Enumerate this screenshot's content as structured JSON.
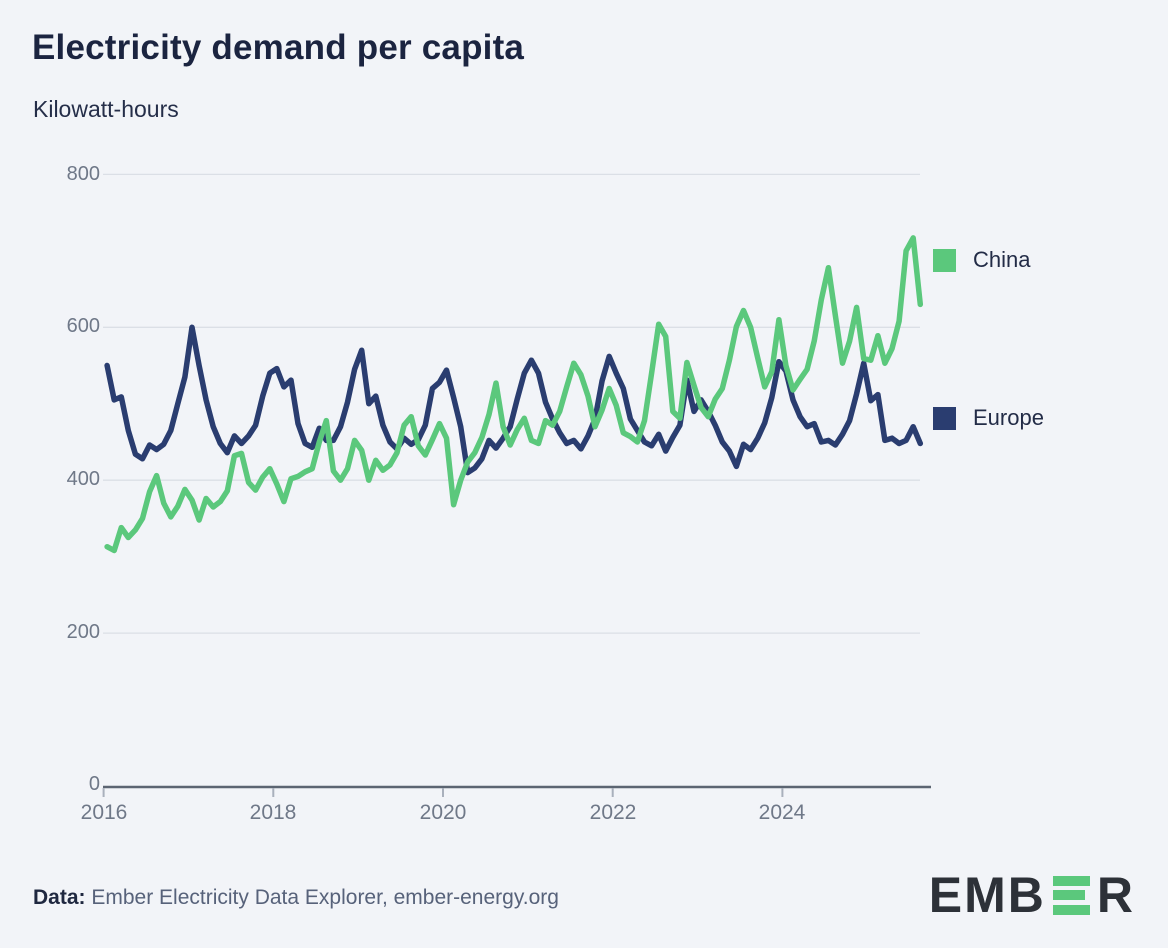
{
  "header": {
    "title": "Electricity demand per capita",
    "subtitle": "Kilowatt-hours"
  },
  "chart_data": {
    "type": "line",
    "title": "Electricity demand per capita",
    "ylabel": "Kilowatt-hours",
    "frequency": "monthly",
    "x_range": [
      "2016-01",
      "2025-08"
    ],
    "x_tick_labels": [
      "2016",
      "2018",
      "2020",
      "2022",
      "2024"
    ],
    "y_ticks": [
      0,
      200,
      400,
      600,
      800
    ],
    "y_tick_labels": [
      "800",
      "600",
      "400",
      "200",
      "0"
    ],
    "ylim": [
      0,
      800
    ],
    "grid": "horizontal",
    "legend_position": "right",
    "colors": {
      "background": "#f2f4f8",
      "gridline": "#dbdfe6",
      "axis": "#5c6572",
      "tick": "#a9b0bc",
      "china": "#5bc87c",
      "europe": "#2a3d70"
    },
    "series": [
      {
        "name": "China",
        "color": "#5bc87c",
        "values": [
          313,
          308,
          338,
          325,
          335,
          350,
          385,
          406,
          370,
          352,
          366,
          388,
          374,
          348,
          376,
          365,
          372,
          386,
          432,
          435,
          397,
          387,
          404,
          415,
          395,
          372,
          402,
          405,
          411,
          415,
          450,
          478,
          412,
          400,
          415,
          452,
          439,
          400,
          426,
          413,
          420,
          436,
          472,
          483,
          445,
          433,
          453,
          474,
          455,
          368,
          400,
          424,
          436,
          456,
          486,
          527,
          470,
          446,
          466,
          481,
          452,
          448,
          478,
          472,
          490,
          522,
          553,
          538,
          510,
          470,
          492,
          520,
          498,
          462,
          457,
          450,
          478,
          540,
          604,
          588,
          490,
          481,
          554,
          524,
          495,
          483,
          506,
          520,
          557,
          601,
          622,
          600,
          560,
          522,
          542,
          610,
          550,
          518,
          532,
          545,
          582,
          636,
          678,
          615,
          553,
          582,
          626,
          559,
          557,
          589,
          553,
          572,
          608,
          700,
          717,
          630
        ]
      },
      {
        "name": "Europe",
        "color": "#2a3d70",
        "values": [
          550,
          505,
          509,
          465,
          434,
          428,
          446,
          440,
          447,
          465,
          500,
          535,
          600,
          550,
          505,
          470,
          448,
          436,
          458,
          448,
          458,
          472,
          510,
          540,
          546,
          522,
          531,
          474,
          448,
          443,
          468,
          452,
          452,
          470,
          502,
          545,
          570,
          500,
          510,
          472,
          450,
          441,
          455,
          447,
          453,
          472,
          520,
          528,
          544,
          508,
          470,
          410,
          416,
          428,
          452,
          442,
          455,
          470,
          506,
          540,
          557,
          540,
          502,
          480,
          462,
          448,
          452,
          441,
          458,
          480,
          530,
          562,
          540,
          520,
          480,
          465,
          450,
          445,
          460,
          438,
          456,
          472,
          531,
          490,
          505,
          490,
          472,
          450,
          438,
          418,
          447,
          440,
          455,
          475,
          508,
          555,
          543,
          505,
          483,
          470,
          474,
          450,
          452,
          446,
          460,
          478,
          513,
          553,
          504,
          512,
          452,
          455,
          448,
          452,
          470,
          448
        ]
      }
    ]
  },
  "legend": {
    "items": [
      {
        "label": "China",
        "color": "#5bc87c"
      },
      {
        "label": "Europe",
        "color": "#2a3d70"
      }
    ]
  },
  "footer": {
    "data_label": "Data:",
    "source_text": " Ember Electricity Data Explorer, ember-energy.org",
    "logo": {
      "text_left": "EMB",
      "text_right": "R",
      "bar_color": "#5bc87c"
    }
  }
}
